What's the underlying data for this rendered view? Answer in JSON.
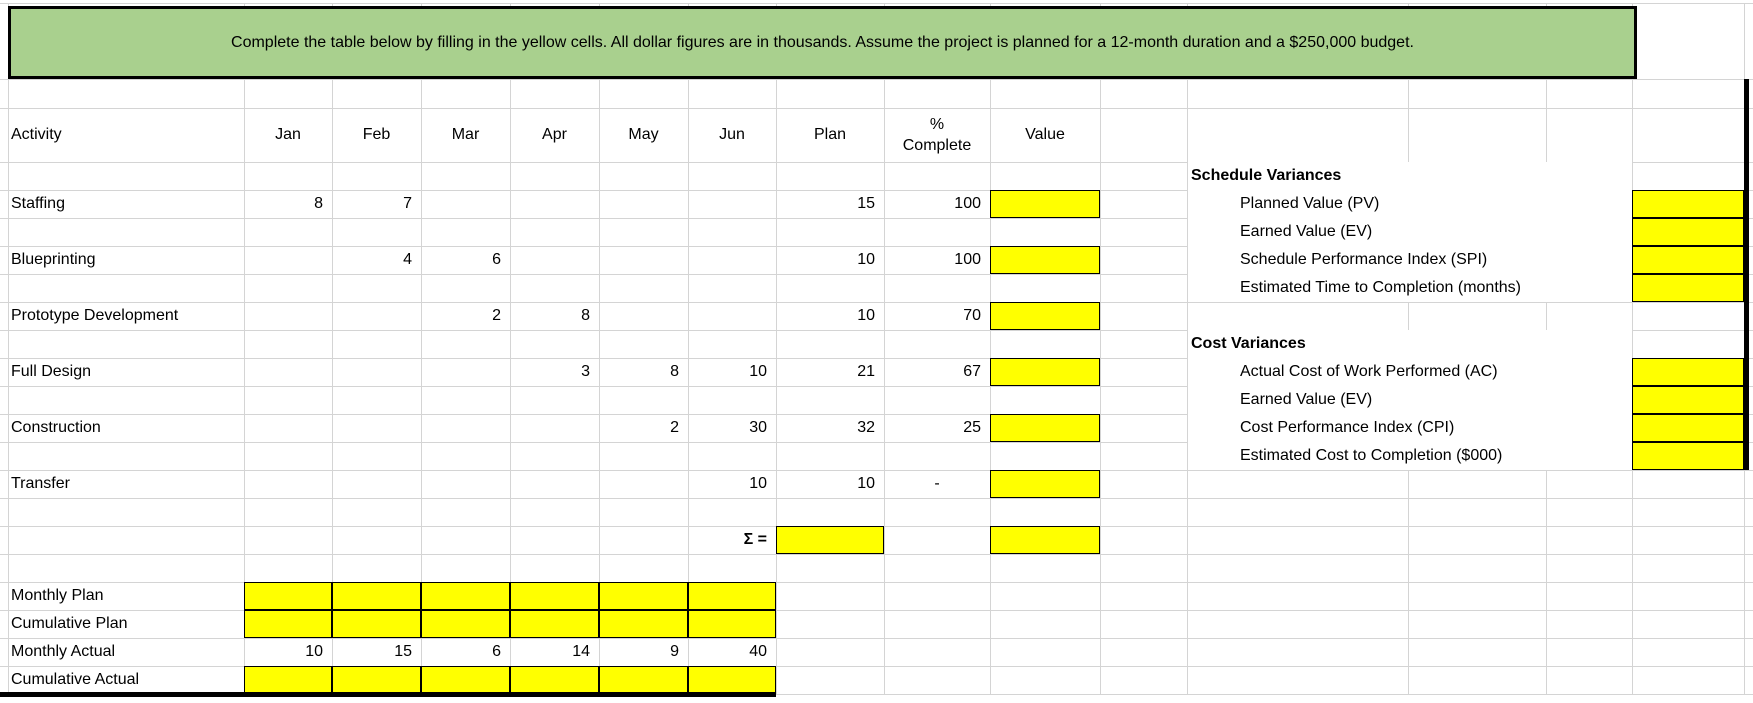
{
  "banner": {
    "text": "Complete the table below by filling in the yellow cells. All dollar figures are in thousands.  Assume the project is planned for a 12-month duration and a $250,000 budget."
  },
  "columns": {
    "activity": "Activity",
    "months": [
      "Jan",
      "Feb",
      "Mar",
      "Apr",
      "May",
      "Jun"
    ],
    "plan": "Plan",
    "pct_line1": "%",
    "pct_line2": "Complete",
    "value": "Value"
  },
  "activities": [
    {
      "name": "Staffing",
      "monthly": {
        "Jan": 8,
        "Feb": 7
      },
      "plan": 15,
      "pct_complete": "100"
    },
    {
      "name": "Blueprinting",
      "monthly": {
        "Feb": 4,
        "Mar": 6
      },
      "plan": 10,
      "pct_complete": "100"
    },
    {
      "name": "Prototype Development",
      "monthly": {
        "Mar": 2,
        "Apr": 8
      },
      "plan": 10,
      "pct_complete": "70"
    },
    {
      "name": "Full Design",
      "monthly": {
        "Apr": 3,
        "May": 8,
        "Jun": 10
      },
      "plan": 21,
      "pct_complete": "67"
    },
    {
      "name": "Construction",
      "monthly": {
        "May": 2,
        "Jun": 30
      },
      "plan": 32,
      "pct_complete": "25"
    },
    {
      "name": "Transfer",
      "monthly": {
        "Jun": 10
      },
      "plan": 10,
      "pct_complete": "-"
    }
  ],
  "sum_row": {
    "label": "Σ ="
  },
  "bottom_rows": {
    "monthly_plan_label": "Monthly Plan",
    "cumulative_plan_label": "Cumulative Plan",
    "monthly_actual_label": "Monthly Actual",
    "monthly_actual_values": [
      10,
      15,
      6,
      14,
      9,
      40
    ],
    "cumulative_actual_label": "Cumulative Actual"
  },
  "schedule_variances": {
    "title": "Schedule Variances",
    "items": [
      "Planned Value (PV)",
      "Earned Value (EV)",
      "Schedule Performance Index (SPI)",
      "Estimated Time to Completion (months)"
    ]
  },
  "cost_variances": {
    "title": "Cost Variances",
    "items": [
      "Actual Cost of Work Performed (AC)",
      "Earned Value (EV)",
      "Cost Performance Index (CPI)",
      "Estimated Cost to Completion ($000)"
    ]
  },
  "colors": {
    "banner_bg": "#a9d08e",
    "input_cell_bg": "#ffff00",
    "gridline": "#d4d4d4"
  }
}
